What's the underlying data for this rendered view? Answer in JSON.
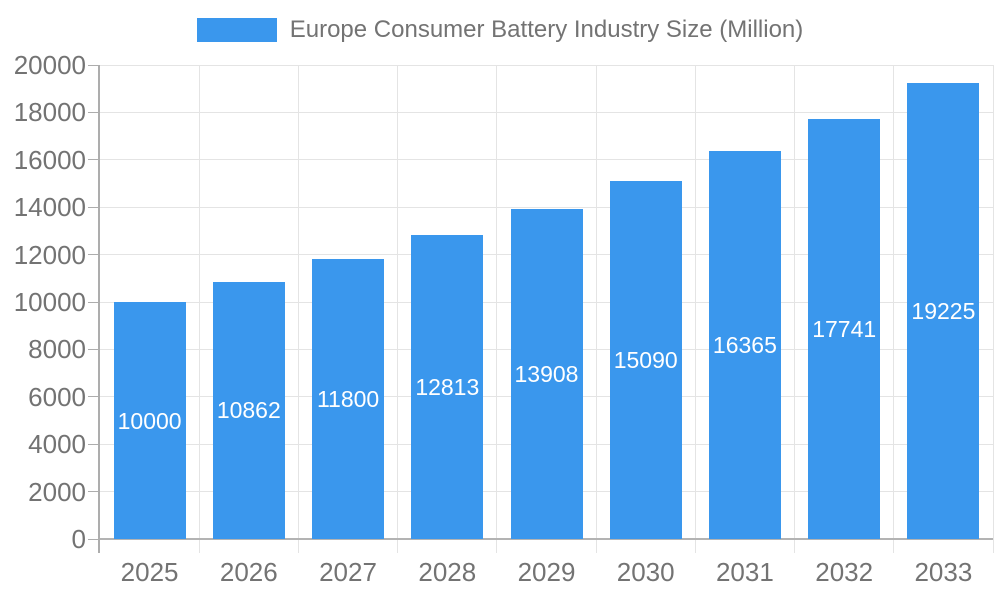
{
  "chart_data": {
    "type": "bar",
    "title": "Europe Consumer Battery Industry Size (Million)",
    "categories": [
      "2025",
      "2026",
      "2027",
      "2028",
      "2029",
      "2030",
      "2031",
      "2032",
      "2033"
    ],
    "values": [
      10000,
      10862,
      11800,
      12813,
      13908,
      15090,
      16365,
      17741,
      19225
    ],
    "series": [
      {
        "name": "Europe Consumer Battery Industry Size (Million)",
        "values": [
          10000,
          10862,
          11800,
          12813,
          13908,
          15090,
          16365,
          17741,
          19225
        ]
      }
    ],
    "xlabel": "",
    "ylabel": "",
    "ylim": [
      0,
      20000
    ],
    "ytick_step": 2000,
    "yticks": [
      0,
      2000,
      4000,
      6000,
      8000,
      10000,
      12000,
      14000,
      16000,
      18000,
      20000
    ],
    "value_labels_shown": true,
    "value_label_position": "inside-center",
    "grid": true,
    "legend_position": "top",
    "colors": {
      "bar": "#3A97ED",
      "grid": "#E4E4E4",
      "axis": "#ADADAD",
      "baseline": "#B3B3B3",
      "text": "#737373",
      "value_label": "#FFFFFF",
      "background": "#FFFFFF"
    }
  }
}
